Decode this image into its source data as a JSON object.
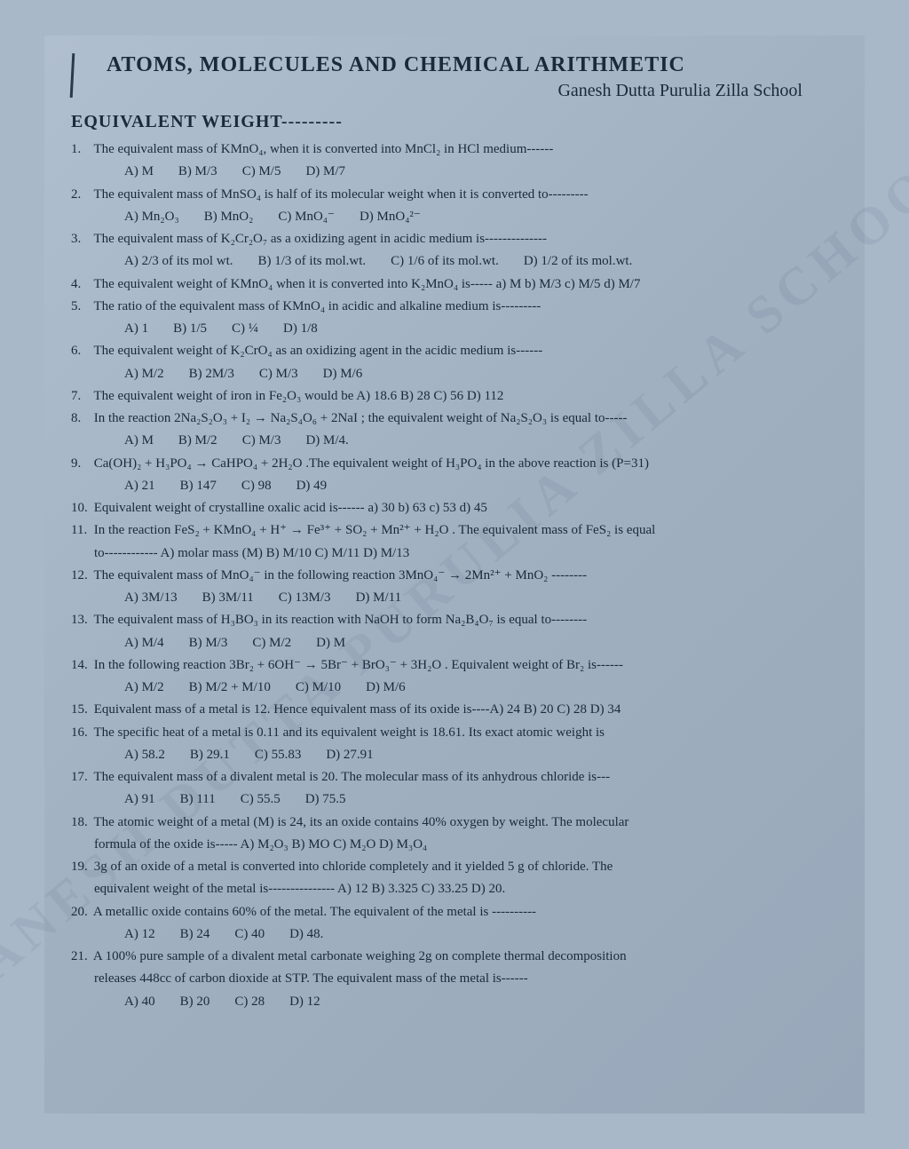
{
  "title": "ATOMS, MOLECULES AND CHEMICAL ARITHMETIC",
  "school": "Ganesh Dutta Purulia Zilla School",
  "section": "EQUIVALENT WEIGHT---------",
  "watermark": "GANESH DUTTA PURULIA ZILLA SCHOOL",
  "questions": [
    {
      "n": "1.",
      "t": "The equivalent mass of KMnO₄, when it is converted into MnCl₂ in HCl medium------",
      "o": [
        "A) M",
        "B) M/3",
        "C) M/5",
        "D) M/7"
      ]
    },
    {
      "n": "2.",
      "t": "The equivalent mass of MnSO₄ is half of its molecular weight when it is converted to---------",
      "o": [
        "A) Mn₂O₃",
        "B) MnO₂",
        "C) MnO₄⁻",
        "D) MnO₄²⁻"
      ]
    },
    {
      "n": "3.",
      "t": "The equivalent mass of K₂Cr₂O₇ as a oxidizing agent in acidic medium is--------------",
      "o": [
        "A) 2/3 of its mol wt.",
        "B) 1/3 of its mol.wt.",
        "C) 1/6 of its mol.wt.",
        "D) 1/2 of its mol.wt."
      ]
    },
    {
      "n": "4.",
      "t": "The equivalent weight of KMnO₄ when it is converted into K₂MnO₄ is----- a) M  b) M/3  c) M/5  d) M/7",
      "o": null
    },
    {
      "n": "5.",
      "t": "The ratio of the equivalent mass of KMnO₄ in acidic and alkaline medium is---------",
      "o": [
        "A) 1",
        "B) 1/5",
        "C) ¼",
        "D) 1/8"
      ]
    },
    {
      "n": "6.",
      "t": "The equivalent weight of K₂CrO₄ as an oxidizing agent in the acidic medium is------",
      "o": [
        "A) M/2",
        "B) 2M/3",
        "C) M/3",
        "D) M/6"
      ]
    },
    {
      "n": "7.",
      "t": "The equivalent weight of iron in Fe₂O₃ would be  A) 18.6  B) 28  C) 56  D) 112",
      "o": null
    },
    {
      "n": "8.",
      "t": "In the reaction 2Na₂S₂O₃ + I₂ → Na₂S₄O₆ + 2NaI ; the equivalent weight of Na₂S₂O₃ is equal to-----",
      "o": [
        "A) M",
        "B) M/2",
        "C) M/3",
        "D) M/4."
      ]
    },
    {
      "n": "9.",
      "t": "Ca(OH)₂ + H₃PO₄ → CaHPO₄ + 2H₂O .The equivalent weight of H₃PO₄ in the above reaction is (P=31)",
      "o": [
        "A) 21",
        "B) 147",
        "C) 98",
        "D) 49"
      ]
    },
    {
      "n": "10.",
      "t": "Equivalent weight of crystalline oxalic acid is------   a) 30    b) 63    c) 53    d) 45",
      "o": null
    },
    {
      "n": "11.",
      "t": "In the reaction FeS₂ + KMnO₄ + H⁺ → Fe³⁺ + SO₂ + Mn²⁺ + H₂O . The equivalent mass of FeS₂ is equal",
      "t2": "to------------    A) molar mass (M)      B) M/10      C) M/11      D) M/13",
      "o": null
    },
    {
      "n": "12.",
      "t": "The equivalent mass of MnO₄⁻ in the following reaction 3MnO₄⁻ → 2Mn²⁺ + MnO₂ --------",
      "o": [
        "A) 3M/13",
        "B) 3M/11",
        "C) 13M/3",
        "D) M/11"
      ]
    },
    {
      "n": "13.",
      "t": "The equivalent mass of H₃BO₃ in its reaction with NaOH to form Na₂B₄O₇ is equal to--------",
      "o": [
        "A) M/4",
        "B) M/3",
        "C) M/2",
        "D) M"
      ]
    },
    {
      "n": "14.",
      "t": "In the following reaction 3Br₂ + 6OH⁻ → 5Br⁻ + BrO₃⁻ + 3H₂O . Equivalent weight of Br₂ is------",
      "o": [
        "A) M/2",
        "B) M/2 + M/10",
        "C) M/10",
        "D) M/6"
      ]
    },
    {
      "n": "15.",
      "t": "Equivalent mass of a metal is 12. Hence equivalent mass of its oxide is----A) 24  B) 20  C) 28  D) 34",
      "o": null
    },
    {
      "n": "16.",
      "t": "The specific heat of a metal is 0.11 and its equivalent weight is 18.61. Its exact atomic weight is",
      "o": [
        "A) 58.2",
        "B) 29.1",
        "C) 55.83",
        "D) 27.91"
      ]
    },
    {
      "n": "17.",
      "t": "The equivalent mass of a divalent metal is 20. The molecular mass of its anhydrous chloride is---",
      "o": [
        "A) 91",
        "B) 111",
        "C) 55.5",
        "D) 75.5"
      ]
    },
    {
      "n": "18.",
      "t": "The atomic weight of a metal (M) is 24, its an oxide contains 40% oxygen by weight. The molecular",
      "t2": "formula of the oxide is-----    A) M₂O₃      B) MO      C) M₂O      D) M₃O₄",
      "o": null
    },
    {
      "n": "19.",
      "t": "3g of an oxide of a metal is converted into chloride completely and it yielded 5 g of chloride. The",
      "t2": "equivalent weight of the metal is---------------  A) 12      B) 3.325      C) 33.25      D) 20.",
      "o": null
    },
    {
      "n": "20.",
      "t": "A metallic oxide contains 60% of the metal. The equivalent of the metal is ----------",
      "o": [
        "A) 12",
        "B) 24",
        "C) 40",
        "D) 48."
      ]
    },
    {
      "n": "21.",
      "t": "A 100% pure sample of a divalent metal carbonate weighing 2g on complete thermal decomposition",
      "t2": "releases 448cc of carbon dioxide at STP. The equivalent mass of the metal is------",
      "o": [
        "A) 40",
        "B) 20",
        "C) 28",
        "D) 12"
      ]
    }
  ]
}
